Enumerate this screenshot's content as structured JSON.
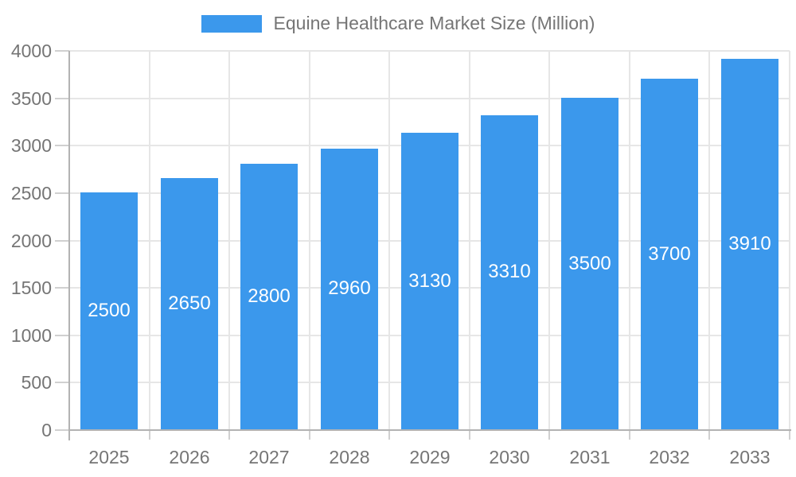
{
  "chart_data": {
    "type": "bar",
    "title": "Equine Healthcare Market Size (Million)",
    "categories": [
      "2025",
      "2026",
      "2027",
      "2028",
      "2029",
      "2030",
      "2031",
      "2032",
      "2033"
    ],
    "values": [
      2500,
      2650,
      2800,
      2960,
      3130,
      3310,
      3500,
      3700,
      3910
    ],
    "bar_labels": [
      "2500",
      "2650",
      "2800",
      "2960",
      "3130",
      "3310",
      "3500",
      "3700",
      "3910"
    ],
    "xlabel": "",
    "ylabel": "",
    "ylim": [
      0,
      4000
    ],
    "ytick_step": 500,
    "ytick_labels": [
      "0",
      "500",
      "1000",
      "1500",
      "2000",
      "2500",
      "3000",
      "3500",
      "4000"
    ],
    "grid": true,
    "legend_position": "top-center",
    "colors": {
      "bar": "#3b98ec",
      "grid": "#e6e6e6",
      "axis": "#b3b3b3",
      "tick": "#d0d0d0",
      "text": "#757575",
      "bar_label": "#ffffff",
      "background": "#ffffff"
    }
  }
}
